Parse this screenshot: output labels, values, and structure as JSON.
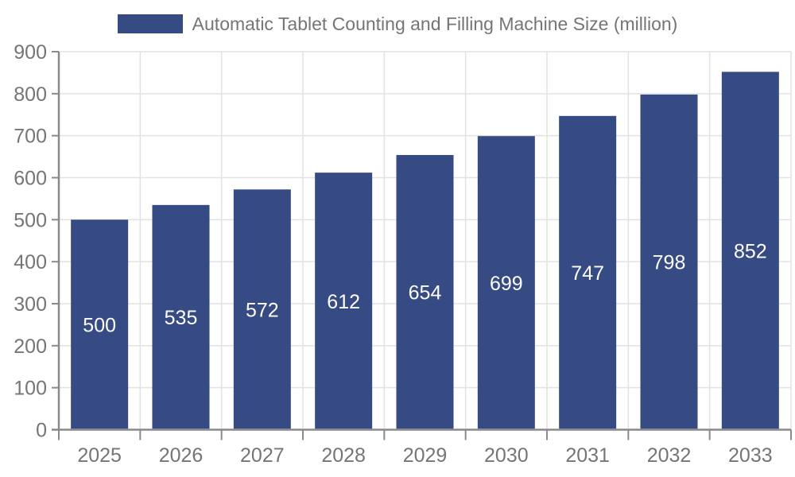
{
  "legend": {
    "label": "Automatic Tablet Counting and Filling Machine Size (million)"
  },
  "colors": {
    "bar": "#364a84",
    "axis_line": "#8a8a8a",
    "axis_label": "#757575",
    "gridline": "#e2e2e2",
    "value_label": "#ffffff",
    "background": "#ffffff"
  },
  "chart_data": {
    "type": "bar",
    "title": "Automatic Tablet Counting and Filling Machine Size (million)",
    "categories": [
      "2025",
      "2026",
      "2027",
      "2028",
      "2029",
      "2030",
      "2031",
      "2032",
      "2033"
    ],
    "series": [
      {
        "name": "Automatic Tablet Counting and Filling Machine Size (million)",
        "values": [
          500,
          535,
          572,
          612,
          654,
          699,
          747,
          798,
          852
        ]
      }
    ],
    "xlabel": "",
    "ylabel": "",
    "ylim": [
      0,
      900
    ],
    "y_tick_step": 100,
    "grid": true,
    "legend_position": "top",
    "bar_label_position": "inside-center"
  }
}
